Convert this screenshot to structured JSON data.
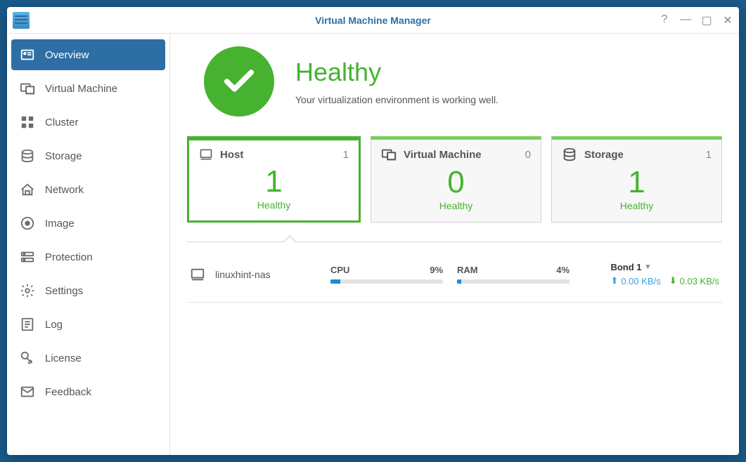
{
  "window": {
    "title": "Virtual Machine Manager"
  },
  "colors": {
    "accent": "#2d6fa4",
    "green": "#46b230",
    "green_light": "#78cf5f",
    "bar": "#1a8cd8"
  },
  "sidebar": {
    "items": [
      {
        "label": "Overview",
        "icon": "overview",
        "active": true
      },
      {
        "label": "Virtual Machine",
        "icon": "vm",
        "active": false
      },
      {
        "label": "Cluster",
        "icon": "cluster",
        "active": false
      },
      {
        "label": "Storage",
        "icon": "storage",
        "active": false
      },
      {
        "label": "Network",
        "icon": "network",
        "active": false
      },
      {
        "label": "Image",
        "icon": "image",
        "active": false
      },
      {
        "label": "Protection",
        "icon": "protection",
        "active": false
      },
      {
        "label": "Settings",
        "icon": "settings",
        "active": false
      },
      {
        "label": "Log",
        "icon": "log",
        "active": false
      },
      {
        "label": "License",
        "icon": "license",
        "active": false
      },
      {
        "label": "Feedback",
        "icon": "feedback",
        "active": false
      }
    ]
  },
  "health": {
    "title": "Healthy",
    "subtitle": "Your virtualization environment is working well."
  },
  "cards": [
    {
      "label": "Host",
      "count": 1,
      "value": 1,
      "status": "Healthy",
      "selected": true,
      "icon": "host"
    },
    {
      "label": "Virtual Machine",
      "count": 0,
      "value": 0,
      "status": "Healthy",
      "selected": false,
      "icon": "vm"
    },
    {
      "label": "Storage",
      "count": 1,
      "value": 1,
      "status": "Healthy",
      "selected": false,
      "icon": "storage"
    }
  ],
  "host": {
    "name": "linuxhint-nas",
    "cpu": {
      "label": "CPU",
      "pct": 9
    },
    "ram": {
      "label": "RAM",
      "pct": 4
    },
    "bond": {
      "name": "Bond 1",
      "up": "0.00 KB/s",
      "down": "0.03 KB/s"
    }
  }
}
